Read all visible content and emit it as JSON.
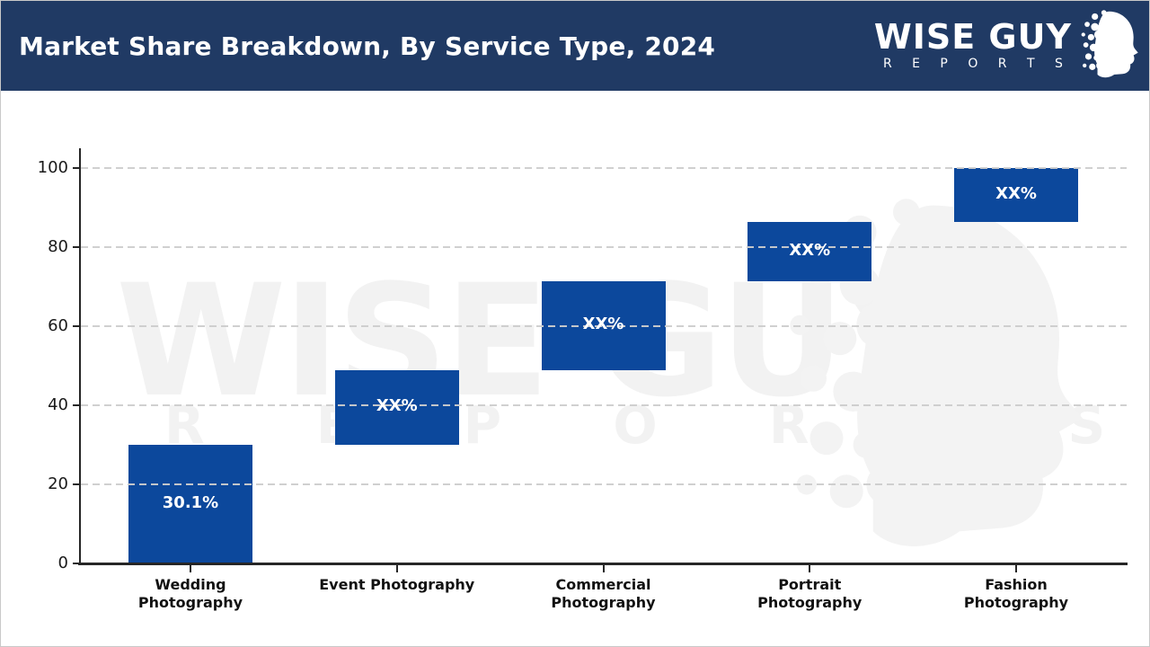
{
  "header": {
    "title": "Market Share Breakdown, By Service Type, 2024",
    "logo": {
      "line1": "WISE GUY",
      "line2": "R E P O R T S"
    }
  },
  "watermark": {
    "line1": "WISE GUY",
    "line2": "REPORTS"
  },
  "colors": {
    "header_bg": "#203a64",
    "bar": "#0c489c",
    "axis": "#262626",
    "gridline": "#d4d4d4",
    "watermark": "#f2f2f2",
    "value_label": "#ffffff"
  },
  "chart_data": {
    "type": "bar",
    "subtype": "waterfall-stacked-breakdown",
    "title": "Market Share Breakdown, By Service Type, 2024",
    "categories": [
      "Wedding\nPhotography",
      "Event Photography",
      "Commercial\nPhotography",
      "Portrait\nPhotography",
      "Fashion\nPhotography"
    ],
    "segments": [
      {
        "category": "Wedding Photography",
        "start": 0,
        "end": 30.1,
        "label": "30.1%"
      },
      {
        "category": "Event Photography",
        "start": 30.1,
        "end": 48.9,
        "label": "XX%"
      },
      {
        "category": "Commercial Photography",
        "start": 48.9,
        "end": 71.4,
        "label": "XX%"
      },
      {
        "category": "Portrait Photography",
        "start": 71.4,
        "end": 86.4,
        "label": "XX%"
      },
      {
        "category": "Fashion Photography",
        "start": 86.4,
        "end": 100,
        "label": "XX%"
      }
    ],
    "xlabel": "",
    "ylabel": "",
    "ylim": [
      0,
      105
    ],
    "yticks": [
      0,
      20,
      40,
      60,
      80,
      100
    ],
    "grid": "dashed horizontal, drawn over bars",
    "legend": "none",
    "background": "#ffffff"
  }
}
